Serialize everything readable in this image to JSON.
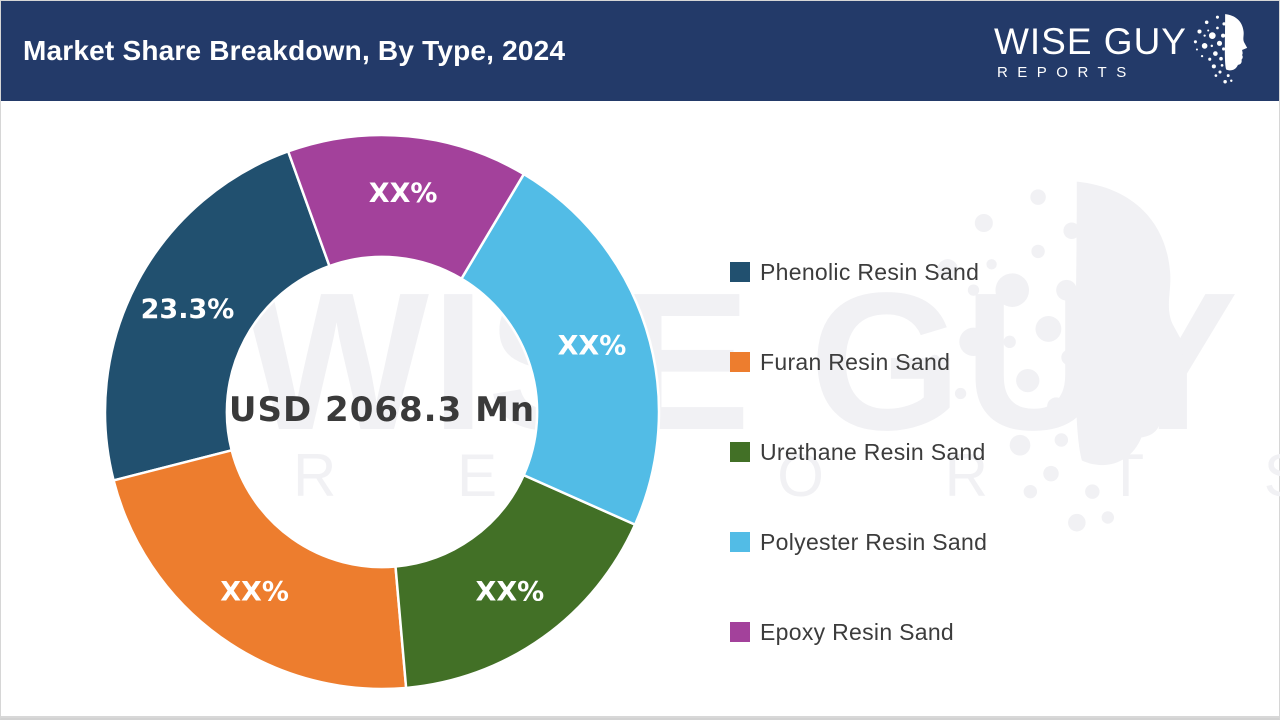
{
  "header": {
    "title": "Market Share Breakdown, By Type, 2024",
    "background_color": "#233A69",
    "logo": {
      "line1": "WISE GUY",
      "line2": "REPORTS"
    }
  },
  "chart_data": {
    "type": "donut",
    "title": "Market Share Breakdown, By Type, 2024",
    "center_label": "USD 2068.3 Mn",
    "inner_radius_ratio": 0.56,
    "label_radius_ratio": 0.795,
    "segments": [
      {
        "name": "Phenolic Resin Sand",
        "label": "23.3%",
        "percent": 23.3,
        "start_angle": 255.7,
        "end_angle": 340.2,
        "color": "#21506F"
      },
      {
        "name": "Furan Resin Sand",
        "label": "XX%",
        "percent": 22.4,
        "start_angle": 175.0,
        "end_angle": 255.7,
        "color": "#ED7D2E"
      },
      {
        "name": "Urethane Resin Sand",
        "label": "XX%",
        "percent": 16.9,
        "start_angle": 114.0,
        "end_angle": 175.0,
        "color": "#427026"
      },
      {
        "name": "Polyester Resin Sand",
        "label": "XX%",
        "percent": 23.1,
        "start_angle": 30.8,
        "end_angle": 114.0,
        "color": "#52BCE6"
      },
      {
        "name": "Epoxy Resin Sand",
        "label": "XX%",
        "percent": 14.3,
        "start_angle": 340.2,
        "end_angle": 390.8,
        "color": "#A3419B"
      }
    ]
  },
  "watermark": {
    "line1": "WISE GUY",
    "line2": "R E P O R T S"
  }
}
